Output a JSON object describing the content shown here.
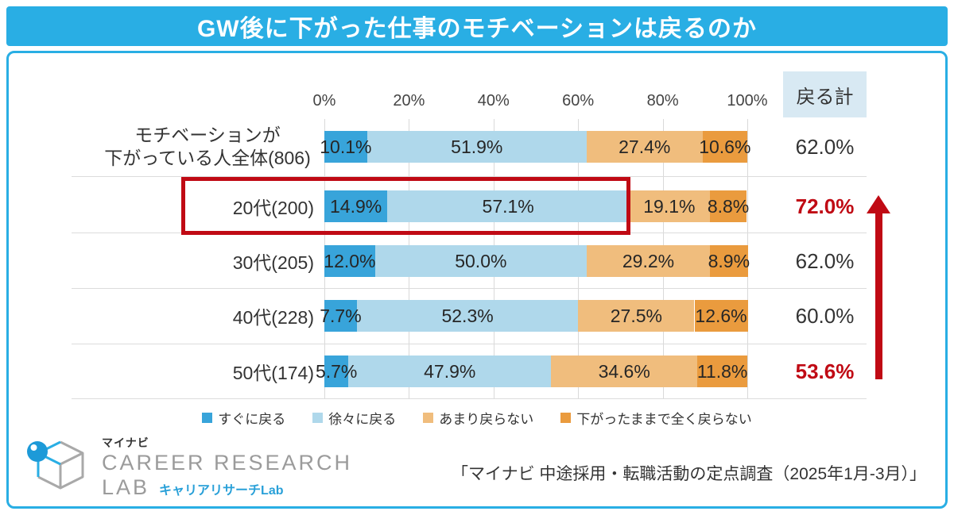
{
  "title": "GW後に下がった仕事のモチベーションは戻るのか",
  "returns_total_header": "戻る計",
  "axis_ticks": [
    "0%",
    "20%",
    "40%",
    "60%",
    "80%",
    "100%"
  ],
  "colors": {
    "accent_cyan": "#29AEE4",
    "highlight_red": "#C00A14",
    "returns_header_bg": "#D8E9F3",
    "gridline": "#D9D9D9",
    "series": [
      "#38A4DA",
      "#AFD8EB",
      "#F0BD7D",
      "#EA9B3E"
    ]
  },
  "chart_data": {
    "type": "bar",
    "orientation": "horizontal-stacked",
    "title": "GW後に下がった仕事のモチベーションは戻るのか",
    "categories": [
      "モチベーションが\n下がっている人全体(806)",
      "20代(200)",
      "30代(205)",
      "40代(228)",
      "50代(174)"
    ],
    "series": [
      {
        "name": "すぐに戻る",
        "values": [
          10.1,
          14.9,
          12.0,
          7.7,
          5.7
        ]
      },
      {
        "name": "徐々に戻る",
        "values": [
          51.9,
          57.1,
          50.0,
          52.3,
          47.9
        ]
      },
      {
        "name": "あまり戻らない",
        "values": [
          27.4,
          19.1,
          29.2,
          27.5,
          34.6
        ]
      },
      {
        "name": "下がったままで全く戻らない",
        "values": [
          10.6,
          8.8,
          8.9,
          12.6,
          11.8
        ]
      }
    ],
    "returns_total": [
      "62.0%",
      "72.0%",
      "62.0%",
      "60.0%",
      "53.6%"
    ],
    "returns_total_red": [
      false,
      true,
      false,
      false,
      true
    ],
    "highlighted_row": 1,
    "xlim": [
      0,
      100
    ],
    "legend_position": "bottom",
    "grid": true
  },
  "footer": {
    "source": "「マイナビ 中途採用・転職活動の定点調査（2025年1月-3月）」",
    "logo": {
      "brand_small": "マイナビ",
      "line1": "CAREER RESEARCH",
      "line2": "LAB",
      "sub": "キャリアリサーチLab"
    }
  }
}
